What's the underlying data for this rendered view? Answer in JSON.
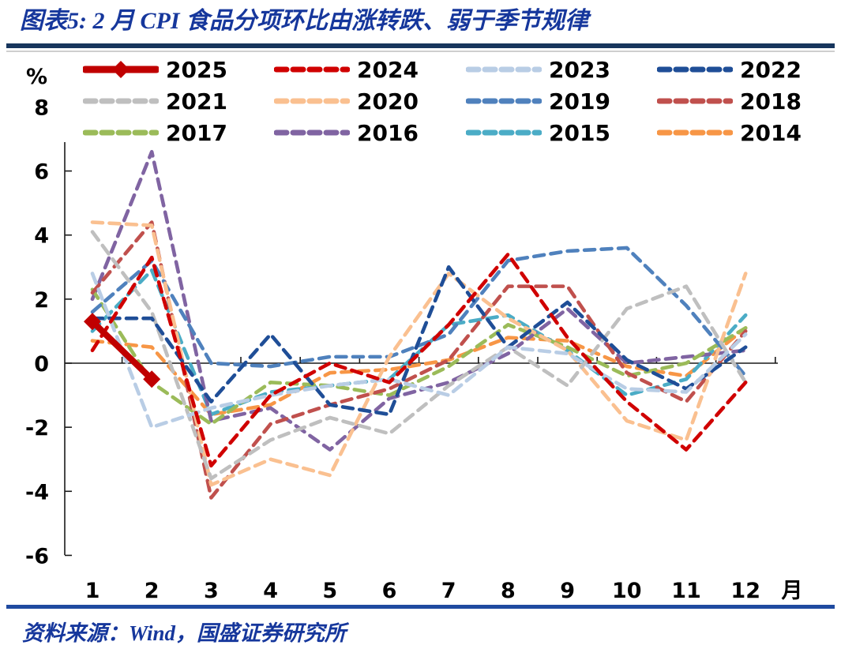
{
  "title": "图表5: 2 月 CPI 食品分项环比由涨转跌、弱于季节规律",
  "source": "资料来源：Wind，国盛证券研究所",
  "colors": {
    "title_text": "#16379C",
    "rule_top": "#17365D",
    "rule_bottom": "#1F4AA0",
    "axis": "#1a1a1a",
    "legend_text": "#000000"
  },
  "y_axis": {
    "unit": "%",
    "labels": [
      8,
      6,
      4,
      2,
      0,
      -2,
      -4,
      -6
    ]
  },
  "x_axis": {
    "labels": [
      "1",
      "2",
      "3",
      "4",
      "5",
      "6",
      "7",
      "8",
      "9",
      "10",
      "11",
      "12"
    ],
    "unit": "月"
  },
  "chart_data": {
    "type": "line",
    "title": "图表5: 2 月 CPI 食品分项环比由涨转跌、弱于季节规律",
    "xlabel": "月",
    "ylabel": "%",
    "x": [
      1,
      2,
      3,
      4,
      5,
      6,
      7,
      8,
      9,
      10,
      11,
      12
    ],
    "ylim": [
      -6,
      8
    ],
    "grid": false,
    "legend_position": "top",
    "series": [
      {
        "name": "2025",
        "color": "#C00000",
        "style": "solid-diamond",
        "values": [
          1.3,
          -0.5
        ]
      },
      {
        "name": "2024",
        "color": "#D00000",
        "style": "dash",
        "values": [
          0.4,
          3.3,
          -3.2,
          -1.0,
          0.0,
          -0.6,
          1.2,
          3.4,
          0.8,
          -1.2,
          -2.7,
          -0.6
        ]
      },
      {
        "name": "2023",
        "color": "#B9CDE5",
        "style": "dash",
        "values": [
          2.8,
          -2.0,
          -1.4,
          -1.0,
          -0.7,
          -0.5,
          -1.0,
          0.5,
          0.3,
          -0.8,
          -0.9,
          0.9
        ]
      },
      {
        "name": "2022",
        "color": "#1F4E97",
        "style": "dash",
        "values": [
          1.4,
          1.4,
          -1.2,
          0.9,
          -1.3,
          -1.6,
          3.0,
          0.5,
          1.9,
          0.1,
          -0.8,
          0.5
        ]
      },
      {
        "name": "2021",
        "color": "#BFBFBF",
        "style": "dash",
        "values": [
          4.1,
          1.6,
          -3.6,
          -2.4,
          -1.7,
          -2.2,
          -0.7,
          0.5,
          -0.7,
          1.7,
          2.4,
          -0.6
        ]
      },
      {
        "name": "2020",
        "color": "#FAC090",
        "style": "dash",
        "values": [
          4.4,
          4.3,
          -3.8,
          -3.0,
          -3.5,
          0.2,
          2.8,
          1.4,
          0.4,
          -1.8,
          -2.4,
          2.8
        ]
      },
      {
        "name": "2019",
        "color": "#4F81BD",
        "style": "dash",
        "values": [
          1.6,
          3.2,
          0.0,
          -0.1,
          0.2,
          0.2,
          0.9,
          3.2,
          3.5,
          3.6,
          1.8,
          -0.4
        ]
      },
      {
        "name": "2018",
        "color": "#C0504D",
        "style": "dash",
        "values": [
          2.2,
          4.4,
          -4.2,
          -1.9,
          -1.3,
          -0.8,
          0.1,
          2.4,
          2.4,
          -0.3,
          -1.2,
          1.0
        ]
      },
      {
        "name": "2017",
        "color": "#9BBB59",
        "style": "dash",
        "values": [
          2.3,
          -0.6,
          -1.9,
          -0.6,
          -0.7,
          -1.0,
          -0.1,
          1.2,
          0.5,
          -0.4,
          0.0,
          1.1
        ]
      },
      {
        "name": "2016",
        "color": "#8064A2",
        "style": "dash",
        "values": [
          2.0,
          6.6,
          -1.8,
          -1.4,
          -2.7,
          -1.1,
          -0.6,
          0.3,
          1.7,
          0.0,
          0.2,
          0.4
        ]
      },
      {
        "name": "2015",
        "color": "#4BACC6",
        "style": "dash",
        "values": [
          1.0,
          2.9,
          -1.6,
          -0.9,
          -0.7,
          -0.5,
          1.2,
          1.5,
          0.4,
          -1.0,
          -0.5,
          1.5
        ]
      },
      {
        "name": "2014",
        "color": "#F79646",
        "style": "dash",
        "values": [
          0.7,
          0.5,
          -1.6,
          -1.3,
          -0.3,
          -0.2,
          0.1,
          0.8,
          0.7,
          -0.1,
          -0.4,
          1.1
        ]
      }
    ]
  }
}
